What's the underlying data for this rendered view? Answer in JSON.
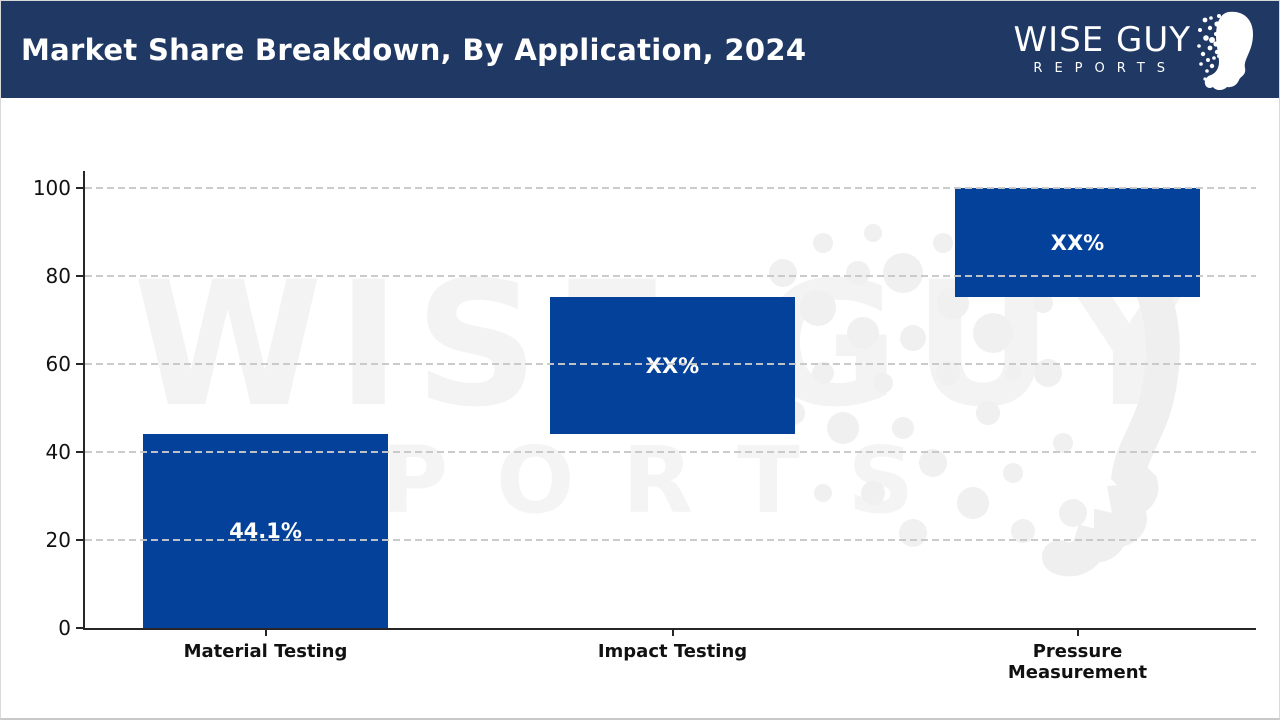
{
  "header": {
    "title": "Market Share Breakdown, By Application, 2024",
    "logo": {
      "line1": "WISE GUY",
      "line2": "REPORTS",
      "icon": "dotted-face-profile-icon"
    },
    "bg_color": "#1f3864"
  },
  "watermark": {
    "line1": "WISE GUY",
    "line2": "REPORTS",
    "icon": "dotted-face-profile-watermark",
    "color": "#f3f3f3"
  },
  "chart_data": {
    "type": "bar",
    "variant": "waterfall-percentage",
    "title": "Market Share Breakdown, By Application, 2024",
    "xlabel": "",
    "ylabel": "",
    "categories": [
      "Material Testing",
      "Impact Testing",
      "Pressure Measurement"
    ],
    "bars": [
      {
        "category": "Material Testing",
        "label": "44.1%",
        "start": 0,
        "end": 44.1
      },
      {
        "category": "Impact Testing",
        "label": "XX%",
        "start": 44.1,
        "end": 75.2
      },
      {
        "category": "Pressure Measurement",
        "label": "XX%",
        "start": 75.2,
        "end": 100
      }
    ],
    "yticks": [
      0,
      20,
      40,
      60,
      80,
      100
    ],
    "ylim": [
      0,
      104
    ],
    "grid": "horizontal-dashed",
    "legend": "none",
    "bar_color": "#04419a",
    "bar_label_color": "#ffffff",
    "axis_color": "#262626",
    "grid_color": "#cccccc",
    "tick_label_color": "#111111"
  }
}
